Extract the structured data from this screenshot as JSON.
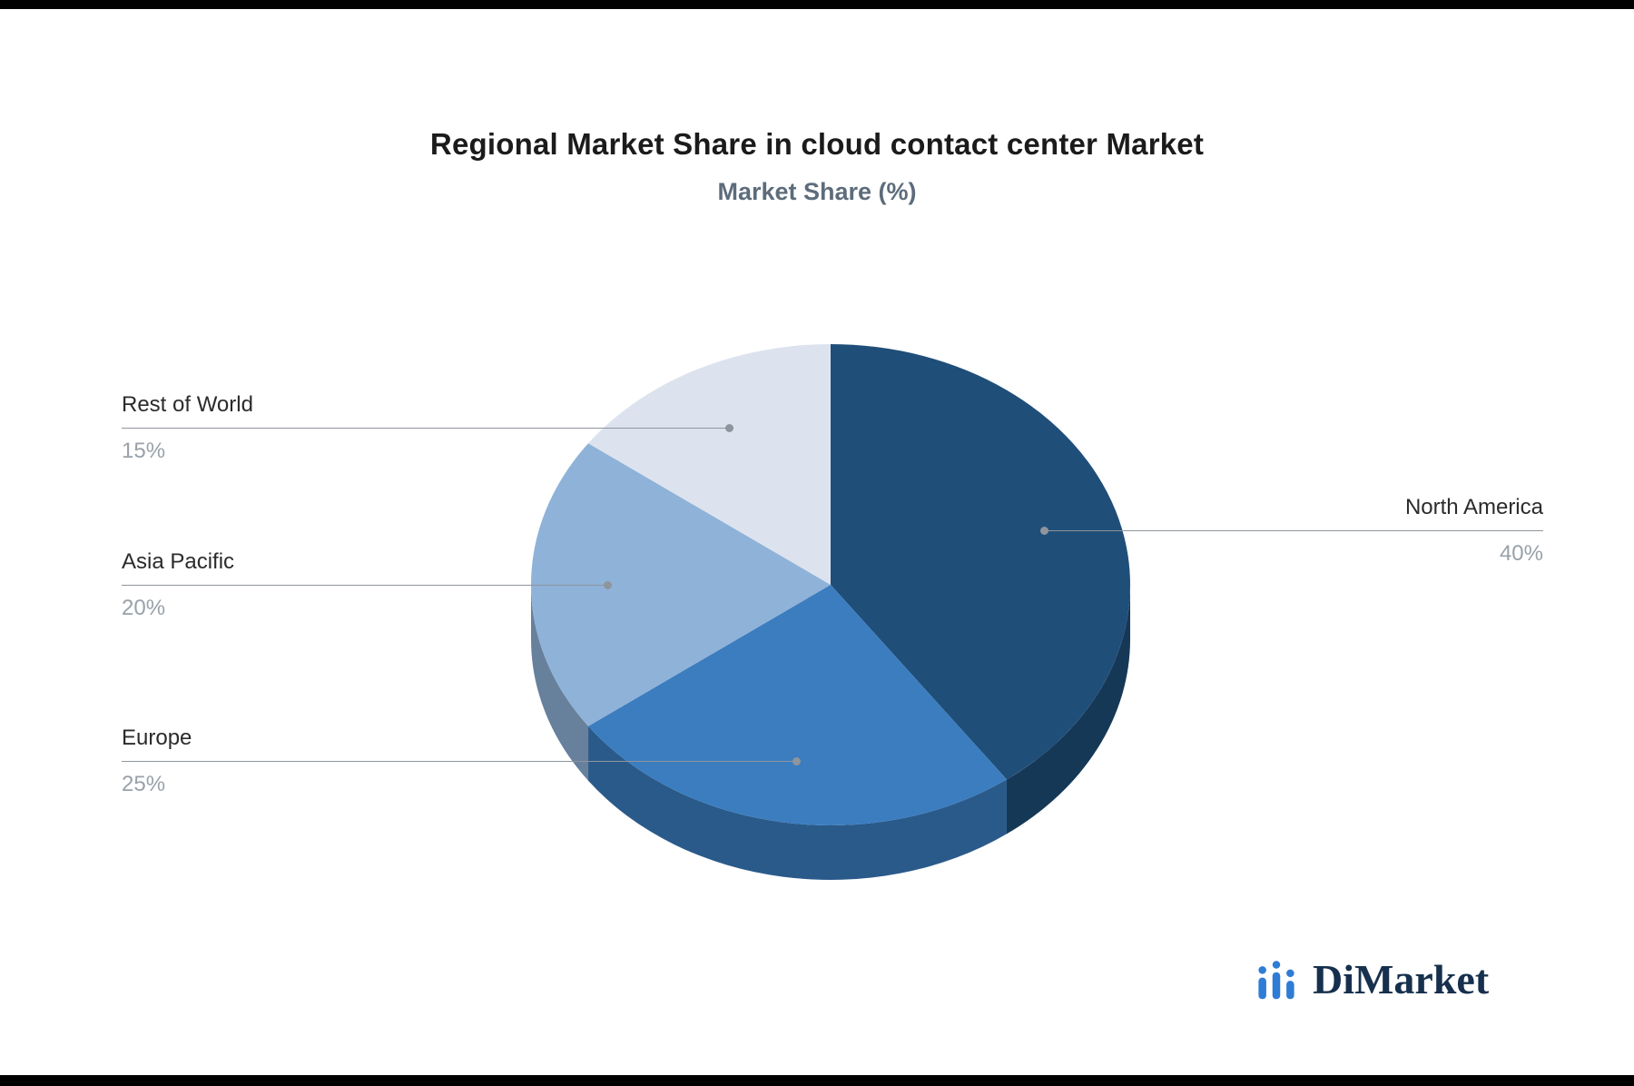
{
  "title": "Regional Market Share in cloud contact center Market",
  "subtitle": "Market Share (%)",
  "chart_data": {
    "type": "pie",
    "style": "3d",
    "title": "Regional Market Share in cloud contact center Market",
    "subtitle": "Market Share (%)",
    "unit": "%",
    "direction": "clockwise",
    "start_angle_deg": 0,
    "categories": [
      "North America",
      "Europe",
      "Asia Pacific",
      "Rest of World"
    ],
    "values": [
      40,
      25,
      20,
      15
    ],
    "colors": [
      "#1f4e79",
      "#3b7dbf",
      "#8fb2d8",
      "#dce3ee"
    ],
    "callouts": [
      {
        "label": "North America",
        "value": "40%",
        "side": "right"
      },
      {
        "label": "Europe",
        "value": "25%",
        "side": "left"
      },
      {
        "label": "Asia Pacific",
        "value": "20%",
        "side": "left"
      },
      {
        "label": "Rest of World",
        "value": "15%",
        "side": "left"
      }
    ]
  },
  "logo": {
    "text": "DiMarket",
    "icon": "bar-chart-logo-icon",
    "text_color": "#16304d",
    "accent_color": "#2e7cd6"
  }
}
